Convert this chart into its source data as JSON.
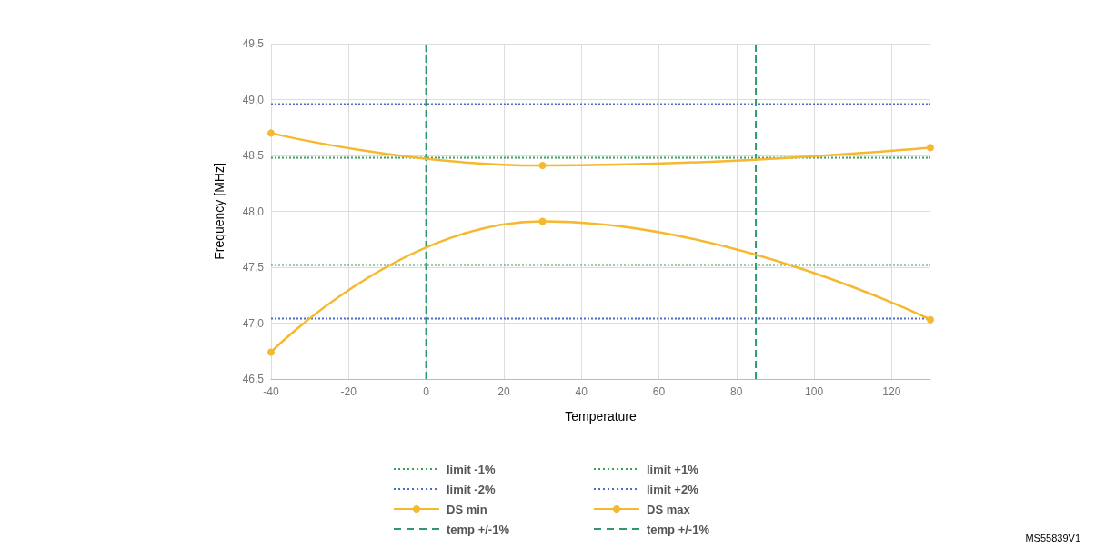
{
  "chart_data": {
    "type": "line",
    "xlabel": "Temperature",
    "ylabel": "Frequency [MHz]",
    "x": [
      -40,
      30,
      130
    ],
    "series": [
      {
        "name": "DS min",
        "color": "#f5b82e",
        "values": [
          46.74,
          47.91,
          47.03
        ]
      },
      {
        "name": "DS max",
        "color": "#f5b82e",
        "values": [
          48.7,
          48.41,
          48.57
        ]
      }
    ],
    "ref_lines": [
      {
        "axis": "y",
        "value": 47.52,
        "label": "limit -1%",
        "color": "#3aa15a",
        "line_style": "dotted"
      },
      {
        "axis": "y",
        "value": 48.48,
        "label": "limit +1%",
        "color": "#3aa15a",
        "line_style": "dotted"
      },
      {
        "axis": "y",
        "value": 47.04,
        "label": "limit -2%",
        "color": "#4a6cc4",
        "line_style": "dotted"
      },
      {
        "axis": "y",
        "value": 48.96,
        "label": "limit +2%",
        "color": "#4a6cc4",
        "line_style": "dotted"
      },
      {
        "axis": "x",
        "value": 0,
        "label": "temp +/-1%",
        "color": "#2e9a6a",
        "line_style": "dashed"
      },
      {
        "axis": "x",
        "value": 85,
        "label": "temp +/-1%",
        "color": "#2e9a6a",
        "line_style": "dashed"
      }
    ],
    "xlim": [
      -40,
      130
    ],
    "xticks": [
      -40,
      -20,
      0,
      20,
      40,
      60,
      80,
      100,
      120
    ],
    "ylim": [
      46.5,
      49.5
    ],
    "yticks": [
      {
        "value": 46.5,
        "label": "46,5"
      },
      {
        "value": 47,
        "label": "47,0"
      },
      {
        "value": 47.5,
        "label": "47,5"
      },
      {
        "value": 48,
        "label": "48,0"
      },
      {
        "value": 48.5,
        "label": "48,5"
      },
      {
        "value": 49,
        "label": "49,0"
      },
      {
        "value": 49.5,
        "label": "49,5"
      }
    ],
    "grid": true,
    "legend": "bottom",
    "marker": "circle",
    "line_style": "solid",
    "annotations": [
      "MS55839V1"
    ]
  }
}
